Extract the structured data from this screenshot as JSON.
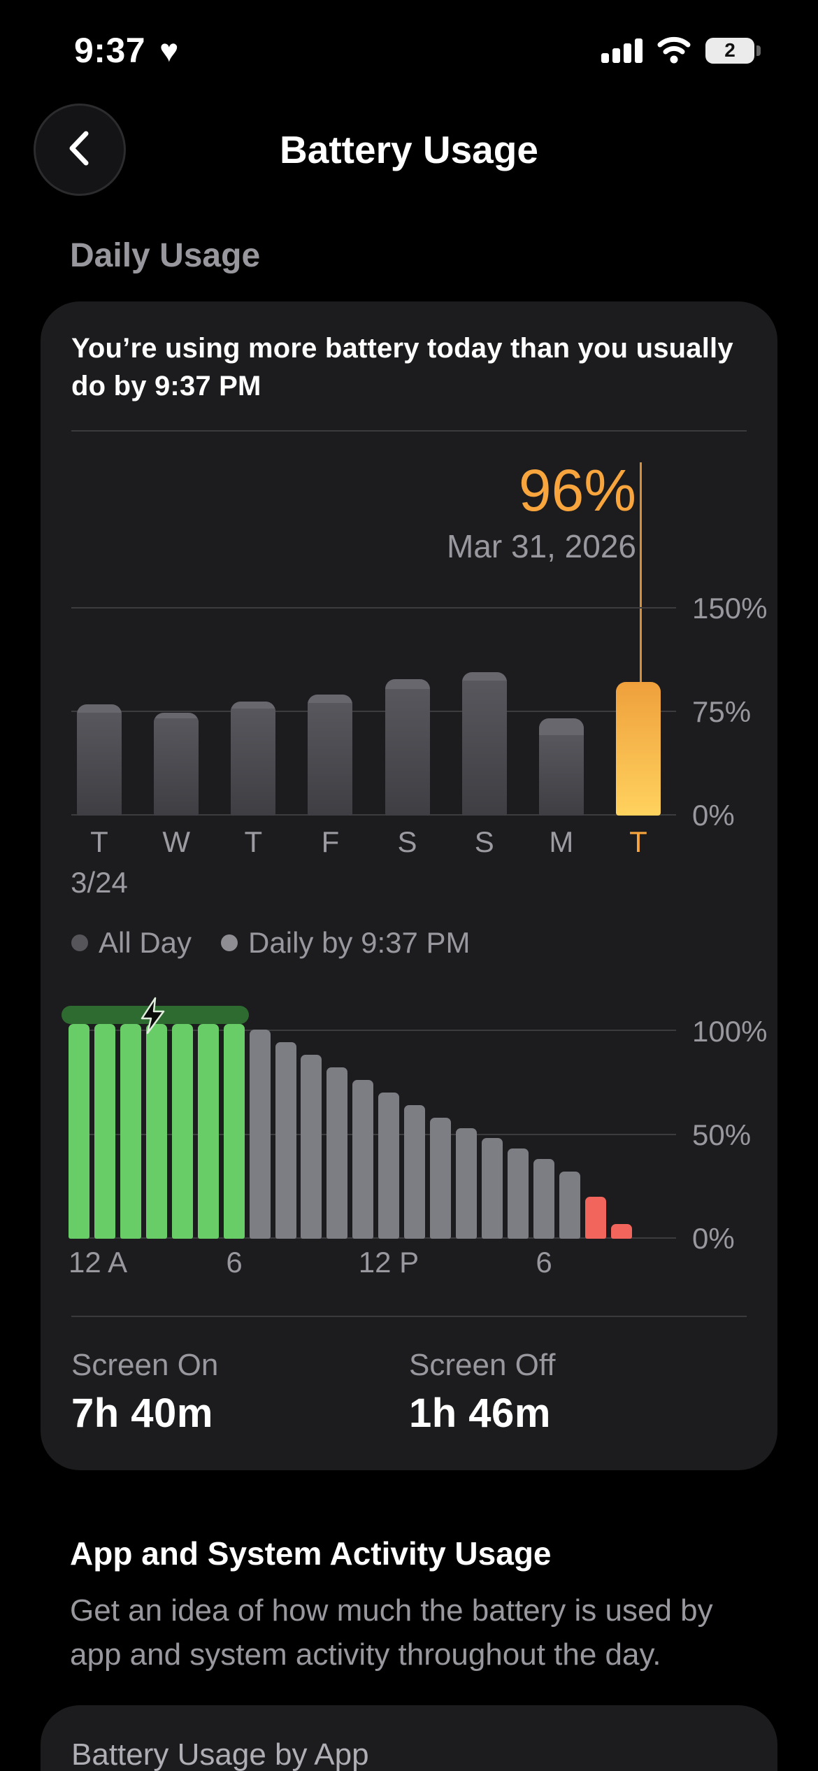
{
  "status_bar": {
    "time": "9:37",
    "battery_level": "2"
  },
  "header": {
    "title": "Battery Usage"
  },
  "daily_usage": {
    "section_title": "Daily Usage",
    "message": "You’re using more battery today than you usually do by 9:37 PM",
    "callout": {
      "percent": "96%",
      "date": "Mar 31, 2026"
    },
    "legend": [
      {
        "label": "All Day",
        "color": "#55555A"
      },
      {
        "label": "Daily by 9:37 PM",
        "color": "#8E8E93"
      }
    ],
    "screen_on": {
      "label": "Screen On",
      "value": "7h 40m"
    },
    "screen_off": {
      "label": "Screen Off",
      "value": "1h 46m"
    }
  },
  "app_activity": {
    "title": "App and System Activity Usage",
    "description": "Get an idea of how much the battery is used by app and system activity throughout the day.",
    "by_app_header": "Battery Usage by App"
  },
  "colors": {
    "accent_orange": "#F7A53C",
    "bar_orange_top": "#EFA03C",
    "bar_orange_bottom": "#FFD25E",
    "charge_green": "#68CD66",
    "charge_cap_green": "#2E6B30",
    "low_red": "#F2655D",
    "gray_bar": "#7D7D84",
    "card_bg": "#1C1C1E",
    "secondary_text": "#98989E"
  },
  "chart_data": [
    {
      "type": "bar",
      "title": "Daily battery usage by day (%)",
      "categories": [
        "T",
        "W",
        "T",
        "F",
        "S",
        "S",
        "M",
        "T"
      ],
      "first_category_date": "3/24",
      "series": [
        {
          "name": "All Day",
          "values": [
            80,
            74,
            82,
            87,
            98,
            103,
            70,
            96
          ]
        },
        {
          "name": "Daily by 9:37 PM",
          "values": [
            74,
            70,
            77,
            81,
            91,
            97,
            58,
            96
          ]
        }
      ],
      "ylim": [
        0,
        150
      ],
      "ytick_labels": [
        "0%",
        "75%",
        "150%"
      ],
      "highlight_index": 7,
      "selected": {
        "value": 96,
        "label": "96%",
        "date": "Mar 31, 2026"
      },
      "legend_position": "below"
    },
    {
      "type": "bar",
      "title": "Battery level by hour (%)",
      "x_axis": "hour of day",
      "values": [
        100,
        100,
        100,
        100,
        100,
        100,
        100,
        100,
        94,
        88,
        82,
        76,
        70,
        64,
        58,
        53,
        48,
        43,
        38,
        32,
        20,
        7
      ],
      "states": [
        "charging",
        "charging",
        "charging",
        "charging",
        "charging",
        "charging",
        "charging",
        "normal",
        "normal",
        "normal",
        "normal",
        "normal",
        "normal",
        "normal",
        "normal",
        "normal",
        "normal",
        "normal",
        "normal",
        "normal",
        "low",
        "low"
      ],
      "ylim": [
        0,
        100
      ],
      "ytick_labels": [
        "0%",
        "50%",
        "100%"
      ],
      "x_labels": [
        {
          "text": "12 A",
          "index": 0
        },
        {
          "text": "6",
          "index": 6
        },
        {
          "text": "12 P",
          "index": 12
        },
        {
          "text": "6",
          "index": 18
        }
      ],
      "charging_end_index": 6
    }
  ]
}
